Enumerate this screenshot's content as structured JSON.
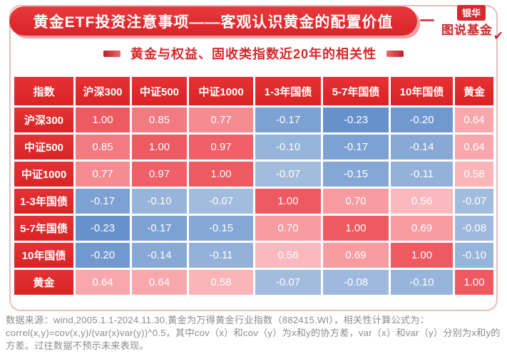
{
  "header": {
    "title": "黄金ETF投资注意事项——客观认识黄金的配置价值",
    "logo_badge": "银华",
    "logo_text": "图说基金",
    "logo_check": "✔"
  },
  "subtitle": "黄金与权益、固收类指数近20年的相关性",
  "chart_data": {
    "type": "heatmap",
    "title": "黄金与权益、固收类指数近20年的相关性",
    "corner_label": "指数",
    "columns": [
      "沪深300",
      "中证500",
      "中证1000",
      "1-3年国债",
      "5-7年国债",
      "10年国债",
      "黄金"
    ],
    "rows": [
      "沪深300",
      "中证500",
      "中证1000",
      "1-3年国债",
      "5-7年国债",
      "10年国债",
      "黄金"
    ],
    "values": [
      [
        1.0,
        0.85,
        0.77,
        -0.17,
        -0.23,
        -0.2,
        0.64
      ],
      [
        0.85,
        1.0,
        0.97,
        -0.1,
        -0.17,
        -0.14,
        0.64
      ],
      [
        0.77,
        0.97,
        1.0,
        -0.07,
        -0.15,
        -0.11,
        0.58
      ],
      [
        -0.17,
        -0.1,
        -0.07,
        1.0,
        0.7,
        0.56,
        -0.07
      ],
      [
        -0.23,
        -0.17,
        -0.15,
        0.7,
        1.0,
        0.69,
        -0.08
      ],
      [
        -0.2,
        -0.14,
        -0.11,
        0.56,
        0.69,
        1.0,
        -0.1
      ],
      [
        0.64,
        0.64,
        0.58,
        -0.07,
        -0.08,
        -0.1,
        1.0
      ]
    ],
    "value_range": [
      -1,
      1
    ],
    "legend": "red = positive correlation, blue = negative correlation"
  },
  "footer": {
    "text": "数据来源：wind,2005.1.1-2024.11.30,黄金为万得黄金行业指数（882415.WI），相关性计算公式为：correl(x,y)=cov(x,y)/(var(x)var(y))^0.5，其中cov（x）和cov（y）为x和y的协方差，var（x）和var（y）分别为x和y的方差。过往数据不预示未来表现。"
  },
  "colors": {
    "brand_red": "#dd2629",
    "positive_strong": "#ee5a62",
    "positive_weak": "#fcc6ca",
    "negative_strong": "#5f8cc9",
    "negative_weak": "#a9c1e0",
    "panel_border": "#e6bcc0",
    "footer_text": "#8d8d8d"
  }
}
